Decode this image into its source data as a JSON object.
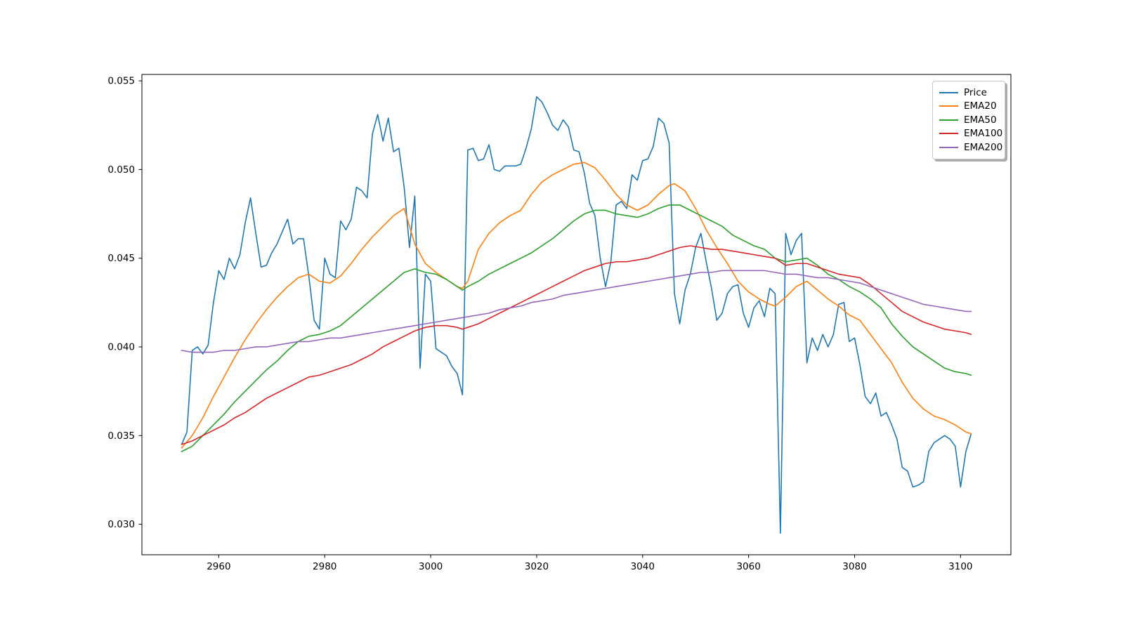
{
  "figure": {
    "background": "#ffffff",
    "title": ""
  },
  "legend": {
    "entries": [
      {
        "label": "Price"
      },
      {
        "label": "EMA20"
      },
      {
        "label": "EMA50"
      },
      {
        "label": "EMA100"
      },
      {
        "label": "EMA200"
      }
    ]
  },
  "chart_data": {
    "type": "line",
    "title": "",
    "xlabel": "",
    "ylabel": "",
    "grid": false,
    "legend_position": "upper right",
    "legend_shadow": true,
    "xlim": [
      2945.5,
      3109.5
    ],
    "ylim": [
      0.02828,
      0.05536
    ],
    "x_ticks": [
      2960,
      2980,
      3000,
      3020,
      3040,
      3060,
      3080,
      3100
    ],
    "x_tick_labels": [
      "2960",
      "2980",
      "3000",
      "3020",
      "3040",
      "3060",
      "3080",
      "3100"
    ],
    "y_ticks": [
      0.03,
      0.035,
      0.04,
      0.045,
      0.05,
      0.055
    ],
    "y_tick_labels": [
      "0.030",
      "0.035",
      "0.040",
      "0.045",
      "0.050",
      "0.055"
    ],
    "series": [
      {
        "name": "Price",
        "color": "#1f77b4",
        "x_start": 2953,
        "x_step": 1,
        "y": [
          0.0345,
          0.0352,
          0.0398,
          0.04,
          0.0396,
          0.0401,
          0.0425,
          0.0443,
          0.0438,
          0.045,
          0.0444,
          0.0452,
          0.047,
          0.0484,
          0.0464,
          0.0445,
          0.0446,
          0.0453,
          0.0458,
          0.0465,
          0.0472,
          0.0458,
          0.0461,
          0.0461,
          0.044,
          0.0415,
          0.041,
          0.045,
          0.0441,
          0.0439,
          0.0471,
          0.0466,
          0.0472,
          0.049,
          0.0488,
          0.0484,
          0.052,
          0.0531,
          0.0516,
          0.0529,
          0.051,
          0.0512,
          0.049,
          0.0456,
          0.0485,
          0.0388,
          0.0441,
          0.0437,
          0.0399,
          0.0397,
          0.0395,
          0.0389,
          0.0385,
          0.0373,
          0.0511,
          0.0512,
          0.0505,
          0.0506,
          0.0514,
          0.05,
          0.0499,
          0.0502,
          0.0502,
          0.0502,
          0.0503,
          0.0512,
          0.0523,
          0.0541,
          0.0538,
          0.0532,
          0.0525,
          0.0522,
          0.0528,
          0.0524,
          0.0511,
          0.051,
          0.0498,
          0.0481,
          0.0474,
          0.045,
          0.0434,
          0.0448,
          0.048,
          0.0482,
          0.0478,
          0.0497,
          0.0494,
          0.0505,
          0.0506,
          0.0513,
          0.0529,
          0.0526,
          0.0515,
          0.043,
          0.0413,
          0.0432,
          0.0441,
          0.0456,
          0.0464,
          0.0448,
          0.0433,
          0.0415,
          0.0419,
          0.043,
          0.0434,
          0.0435,
          0.0419,
          0.0411,
          0.0422,
          0.0426,
          0.0417,
          0.0433,
          0.043,
          0.0295,
          0.0464,
          0.0452,
          0.046,
          0.0464,
          0.0391,
          0.0405,
          0.0398,
          0.0407,
          0.04,
          0.0407,
          0.0424,
          0.0425,
          0.0403,
          0.0405,
          0.039,
          0.0372,
          0.0368,
          0.0374,
          0.0361,
          0.0363,
          0.0356,
          0.0348,
          0.0332,
          0.033,
          0.0321,
          0.0322,
          0.0324,
          0.0341,
          0.0346,
          0.0348,
          0.035,
          0.0348,
          0.0344,
          0.0321,
          0.0341,
          0.0351
        ]
      },
      {
        "name": "EMA20",
        "color": "#ff7f0e",
        "x": [
          2953,
          2955,
          2957,
          2959,
          2961,
          2963,
          2965,
          2967,
          2969,
          2971,
          2973,
          2975,
          2977,
          2979,
          2981,
          2983,
          2985,
          2987,
          2989,
          2991,
          2993,
          2995,
          2997,
          2999,
          3001,
          3003,
          3005,
          3006,
          3007,
          3009,
          3011,
          3013,
          3015,
          3017,
          3019,
          3021,
          3023,
          3025,
          3027,
          3029,
          3031,
          3033,
          3035,
          3037,
          3039,
          3041,
          3043,
          3045,
          3046,
          3048,
          3050,
          3052,
          3054,
          3056,
          3058,
          3060,
          3062,
          3064,
          3065,
          3067,
          3069,
          3071,
          3073,
          3075,
          3077,
          3079,
          3081,
          3083,
          3085,
          3087,
          3089,
          3091,
          3093,
          3095,
          3097,
          3099,
          3101,
          3102
        ],
        "y": [
          0.0343,
          0.035,
          0.036,
          0.0372,
          0.0383,
          0.0394,
          0.0404,
          0.0413,
          0.0421,
          0.0428,
          0.0434,
          0.0439,
          0.0441,
          0.0437,
          0.0436,
          0.044,
          0.0447,
          0.0455,
          0.0462,
          0.0468,
          0.0474,
          0.0478,
          0.0458,
          0.0447,
          0.0442,
          0.0438,
          0.0434,
          0.0433,
          0.0437,
          0.0455,
          0.0464,
          0.047,
          0.0474,
          0.0477,
          0.0486,
          0.0493,
          0.0497,
          0.05,
          0.0503,
          0.0504,
          0.0501,
          0.0494,
          0.0486,
          0.048,
          0.0477,
          0.048,
          0.0486,
          0.0491,
          0.0492,
          0.0488,
          0.0478,
          0.0466,
          0.0456,
          0.0447,
          0.0437,
          0.0431,
          0.0427,
          0.0424,
          0.0423,
          0.0428,
          0.0434,
          0.0437,
          0.0432,
          0.0427,
          0.0423,
          0.0418,
          0.0415,
          0.0407,
          0.0399,
          0.0391,
          0.038,
          0.0371,
          0.0365,
          0.0361,
          0.0359,
          0.0356,
          0.0352,
          0.0351
        ]
      },
      {
        "name": "EMA50",
        "color": "#2ca02c",
        "x": [
          2953,
          2955,
          2957,
          2959,
          2961,
          2963,
          2965,
          2967,
          2969,
          2971,
          2973,
          2975,
          2977,
          2979,
          2981,
          2983,
          2985,
          2987,
          2989,
          2991,
          2993,
          2995,
          2997,
          2999,
          3001,
          3003,
          3005,
          3006,
          3007,
          3009,
          3011,
          3013,
          3015,
          3017,
          3019,
          3021,
          3023,
          3025,
          3027,
          3029,
          3031,
          3033,
          3035,
          3037,
          3039,
          3041,
          3043,
          3045,
          3047,
          3049,
          3051,
          3053,
          3055,
          3057,
          3059,
          3061,
          3063,
          3065,
          3067,
          3069,
          3071,
          3073,
          3075,
          3077,
          3079,
          3081,
          3083,
          3085,
          3087,
          3089,
          3091,
          3093,
          3095,
          3097,
          3099,
          3101,
          3102
        ],
        "y": [
          0.0341,
          0.0344,
          0.035,
          0.0356,
          0.0362,
          0.0369,
          0.0375,
          0.0381,
          0.0387,
          0.0392,
          0.0398,
          0.0403,
          0.0406,
          0.0407,
          0.0409,
          0.0412,
          0.0417,
          0.0422,
          0.0427,
          0.0432,
          0.0437,
          0.0442,
          0.0444,
          0.0442,
          0.0441,
          0.0438,
          0.0434,
          0.0432,
          0.0434,
          0.0437,
          0.0441,
          0.0444,
          0.0447,
          0.045,
          0.0453,
          0.0457,
          0.0461,
          0.0466,
          0.0471,
          0.0475,
          0.0477,
          0.0477,
          0.0475,
          0.0474,
          0.0473,
          0.0475,
          0.0478,
          0.048,
          0.048,
          0.0477,
          0.0474,
          0.0471,
          0.0468,
          0.0463,
          0.046,
          0.0457,
          0.0455,
          0.045,
          0.0448,
          0.0449,
          0.045,
          0.0446,
          0.0441,
          0.0438,
          0.0434,
          0.0431,
          0.0427,
          0.0422,
          0.0413,
          0.0406,
          0.04,
          0.0396,
          0.0392,
          0.0388,
          0.0386,
          0.0385,
          0.0384
        ]
      },
      {
        "name": "EMA100",
        "color": "#d62728",
        "x": [
          2953,
          2955,
          2957,
          2959,
          2961,
          2963,
          2965,
          2967,
          2969,
          2971,
          2973,
          2975,
          2977,
          2979,
          2981,
          2983,
          2985,
          2987,
          2989,
          2991,
          2993,
          2995,
          2997,
          2999,
          3001,
          3003,
          3005,
          3006,
          3007,
          3009,
          3011,
          3013,
          3015,
          3017,
          3019,
          3021,
          3023,
          3025,
          3027,
          3029,
          3031,
          3033,
          3035,
          3037,
          3039,
          3041,
          3043,
          3045,
          3047,
          3049,
          3051,
          3053,
          3055,
          3057,
          3059,
          3061,
          3063,
          3065,
          3067,
          3069,
          3071,
          3073,
          3075,
          3077,
          3079,
          3081,
          3083,
          3085,
          3087,
          3089,
          3091,
          3093,
          3095,
          3097,
          3099,
          3101,
          3102
        ],
        "y": [
          0.0345,
          0.0347,
          0.035,
          0.0353,
          0.0356,
          0.036,
          0.0363,
          0.0367,
          0.0371,
          0.0374,
          0.0377,
          0.038,
          0.0383,
          0.0384,
          0.0386,
          0.0388,
          0.039,
          0.0393,
          0.0396,
          0.04,
          0.0403,
          0.0406,
          0.0409,
          0.0411,
          0.0412,
          0.0412,
          0.0411,
          0.041,
          0.0411,
          0.0413,
          0.0416,
          0.0419,
          0.0422,
          0.0425,
          0.0428,
          0.0431,
          0.0434,
          0.0437,
          0.044,
          0.0443,
          0.0445,
          0.0447,
          0.0448,
          0.0448,
          0.0449,
          0.045,
          0.0452,
          0.0454,
          0.0456,
          0.0457,
          0.0456,
          0.0455,
          0.0455,
          0.0454,
          0.0453,
          0.0452,
          0.0451,
          0.045,
          0.0446,
          0.0447,
          0.0447,
          0.0445,
          0.0443,
          0.0441,
          0.044,
          0.0439,
          0.0435,
          0.043,
          0.0425,
          0.042,
          0.0417,
          0.0414,
          0.0412,
          0.041,
          0.0409,
          0.0408,
          0.0407
        ]
      },
      {
        "name": "EMA200",
        "color": "#9467bd",
        "x": [
          2953,
          2955,
          2957,
          2959,
          2961,
          2963,
          2965,
          2967,
          2969,
          2971,
          2973,
          2975,
          2977,
          2979,
          2981,
          2983,
          2985,
          2987,
          2989,
          2991,
          2993,
          2995,
          2997,
          2999,
          3001,
          3003,
          3005,
          3007,
          3009,
          3011,
          3013,
          3015,
          3017,
          3019,
          3021,
          3023,
          3025,
          3027,
          3029,
          3031,
          3033,
          3035,
          3037,
          3039,
          3041,
          3043,
          3045,
          3047,
          3049,
          3051,
          3053,
          3055,
          3057,
          3059,
          3061,
          3063,
          3065,
          3067,
          3069,
          3071,
          3073,
          3075,
          3077,
          3079,
          3081,
          3083,
          3085,
          3087,
          3089,
          3091,
          3093,
          3095,
          3097,
          3099,
          3101,
          3102
        ],
        "y": [
          0.0398,
          0.0397,
          0.0397,
          0.0397,
          0.0398,
          0.0398,
          0.0399,
          0.04,
          0.04,
          0.0401,
          0.0402,
          0.0403,
          0.0403,
          0.0404,
          0.0405,
          0.0405,
          0.0406,
          0.0407,
          0.0408,
          0.0409,
          0.041,
          0.0411,
          0.0412,
          0.0413,
          0.0414,
          0.0415,
          0.0416,
          0.0417,
          0.0418,
          0.0419,
          0.0421,
          0.0422,
          0.0423,
          0.0425,
          0.0426,
          0.0427,
          0.0429,
          0.043,
          0.0431,
          0.0432,
          0.0433,
          0.0434,
          0.0435,
          0.0436,
          0.0437,
          0.0438,
          0.0439,
          0.044,
          0.0441,
          0.0442,
          0.0442,
          0.0443,
          0.0443,
          0.0443,
          0.0443,
          0.0443,
          0.0442,
          0.0441,
          0.0441,
          0.044,
          0.0439,
          0.0439,
          0.0438,
          0.0437,
          0.0436,
          0.0434,
          0.0432,
          0.043,
          0.0428,
          0.0426,
          0.0424,
          0.0423,
          0.0422,
          0.0421,
          0.042,
          0.042
        ]
      }
    ]
  }
}
